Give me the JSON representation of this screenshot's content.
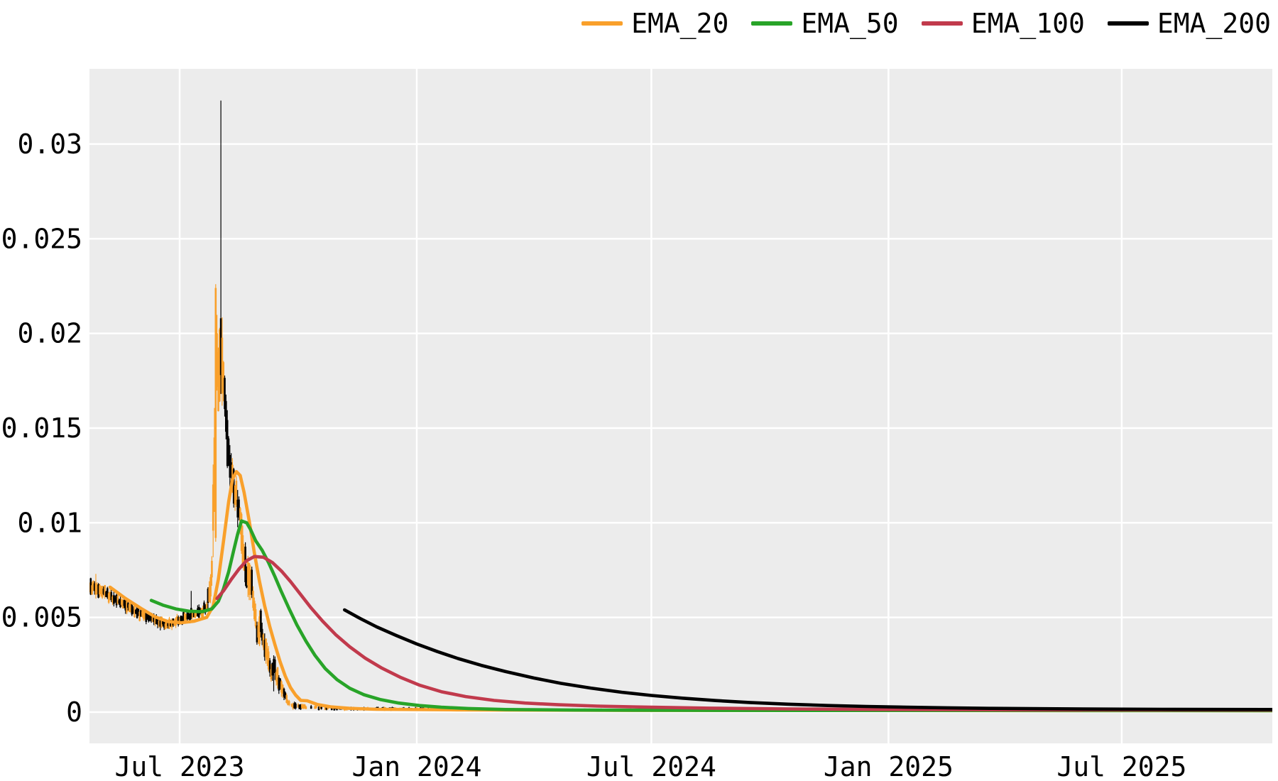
{
  "figure": {
    "bg": "#ffffff",
    "plot_bg": "#ececec",
    "grid_color": "#ffffff",
    "text_color": "#000000"
  },
  "legend": {
    "position": "top-right",
    "items": [
      {
        "label": "EMA_20",
        "color": "#F9A02B"
      },
      {
        "label": "EMA_50",
        "color": "#28A428"
      },
      {
        "label": "EMA_100",
        "color": "#C13A4C"
      },
      {
        "label": "EMA_200",
        "color": "#000000"
      }
    ]
  },
  "axes": {
    "y_ticks": [
      {
        "value": 0,
        "label": "0"
      },
      {
        "value": 0.005,
        "label": "0.005"
      },
      {
        "value": 0.01,
        "label": "0.01"
      },
      {
        "value": 0.015,
        "label": "0.015"
      },
      {
        "value": 0.02,
        "label": "0.02"
      },
      {
        "value": 0.025,
        "label": "0.025"
      },
      {
        "value": 0.03,
        "label": "0.03"
      }
    ],
    "x_ticks": [
      {
        "date": "2023-07-01",
        "label": "Jul 2023"
      },
      {
        "date": "2024-01-01",
        "label": "Jan 2024"
      },
      {
        "date": "2024-07-01",
        "label": "Jul 2024"
      },
      {
        "date": "2025-01-01",
        "label": "Jan 2025"
      },
      {
        "date": "2025-07-01",
        "label": "Jul 2025"
      }
    ]
  },
  "chart_data": {
    "type": "candlestick+line",
    "title": "",
    "xlabel": "",
    "ylabel": "",
    "grid": true,
    "legend_position": "upper right (above axes)",
    "x_range": [
      "2023-04-22",
      "2025-10-26"
    ],
    "ylim": [
      -0.00175,
      0.0339
    ],
    "candle_up_color": "#F9A02B",
    "candle_down_color": "#000000",
    "price_envelope_comment": "daily candle hi/lo envelope read from pixels: [date, low, high]",
    "price_envelope": [
      [
        "2023-04-22",
        0.0062,
        0.0071
      ],
      [
        "2023-04-28",
        0.006,
        0.0073
      ],
      [
        "2023-05-05",
        0.0058,
        0.0067
      ],
      [
        "2023-05-14",
        0.0054,
        0.0063
      ],
      [
        "2023-05-24",
        0.005,
        0.0059
      ],
      [
        "2023-06-03",
        0.0047,
        0.0055
      ],
      [
        "2023-06-12",
        0.0044,
        0.0052
      ],
      [
        "2023-06-20",
        0.0042,
        0.005
      ],
      [
        "2023-06-28",
        0.0044,
        0.0052
      ],
      [
        "2023-07-06",
        0.0046,
        0.0054
      ],
      [
        "2023-07-14",
        0.0048,
        0.0056
      ],
      [
        "2023-07-22",
        0.005,
        0.006
      ],
      [
        "2023-07-26",
        0.0055,
        0.009
      ],
      [
        "2023-07-27",
        0.007,
        0.0135
      ],
      [
        "2023-07-28",
        0.01,
        0.0185
      ],
      [
        "2023-07-29",
        0.009,
        0.0226
      ],
      [
        "2023-07-30",
        0.015,
        0.0215
      ],
      [
        "2023-08-01",
        0.016,
        0.0205
      ],
      [
        "2023-08-02",
        0.0165,
        0.0323
      ],
      [
        "2023-08-03",
        0.016,
        0.021
      ],
      [
        "2023-08-04",
        0.015,
        0.0195
      ],
      [
        "2023-08-06",
        0.0135,
        0.0172
      ],
      [
        "2023-08-08",
        0.012,
        0.0155
      ],
      [
        "2023-08-10",
        0.0108,
        0.014
      ],
      [
        "2023-08-12",
        0.0104,
        0.013
      ],
      [
        "2023-08-14",
        0.01,
        0.0126
      ],
      [
        "2023-08-16",
        0.0094,
        0.0118
      ],
      [
        "2023-08-18",
        0.0082,
        0.0108
      ],
      [
        "2023-08-20",
        0.007,
        0.0096
      ],
      [
        "2023-08-22",
        0.006,
        0.0084
      ],
      [
        "2023-08-24",
        0.0058,
        0.0082
      ],
      [
        "2023-08-26",
        0.0056,
        0.008
      ],
      [
        "2023-08-28",
        0.0042,
        0.0068
      ],
      [
        "2023-08-30",
        0.003,
        0.0055
      ],
      [
        "2023-09-01",
        0.0032,
        0.0058
      ],
      [
        "2023-09-03",
        0.003,
        0.0054
      ],
      [
        "2023-09-05",
        0.0022,
        0.0044
      ],
      [
        "2023-09-07",
        0.002,
        0.0038
      ],
      [
        "2023-09-09",
        0.0014,
        0.0032
      ],
      [
        "2023-09-11",
        0.0012,
        0.0028
      ],
      [
        "2023-09-13",
        0.0016,
        0.003
      ],
      [
        "2023-09-15",
        0.001,
        0.0024
      ],
      [
        "2023-09-17",
        0.0008,
        0.002
      ],
      [
        "2023-09-19",
        0.0006,
        0.0016
      ],
      [
        "2023-09-21",
        0.0004,
        0.0012
      ],
      [
        "2023-09-23",
        0.0002,
        0.0008
      ],
      [
        "2023-09-25",
        0.0001,
        0.0006
      ],
      [
        "2023-10-05",
        8e-05,
        0.00045
      ],
      [
        "2023-10-20",
        7e-05,
        0.00035
      ],
      [
        "2023-11-15",
        6e-05,
        0.0003
      ],
      [
        "2024-01-01",
        6e-05,
        0.00028
      ],
      [
        "2024-03-01",
        5e-05,
        0.00022
      ],
      [
        "2024-07-01",
        4e-05,
        0.00018
      ],
      [
        "2025-01-01",
        3e-05,
        0.00016
      ],
      [
        "2025-10-26",
        3e-05,
        0.00014
      ]
    ],
    "feature_candles_comment": "notable individual candles: [date, low, high, bodyLow, bodyHigh, color]",
    "feature_candles": [
      [
        "2023-04-27",
        0.006,
        0.0073,
        0.0062,
        0.0068,
        "up"
      ],
      [
        "2023-07-10",
        0.0049,
        0.0064,
        0.005,
        0.0055,
        "down"
      ],
      [
        "2023-07-29",
        0.009,
        0.0226,
        0.0092,
        0.0224,
        "up"
      ],
      [
        "2023-08-02",
        0.0168,
        0.0323,
        0.0178,
        0.0208,
        "down"
      ],
      [
        "2023-09-12",
        0.0011,
        0.003,
        0.0022,
        0.0028,
        "down"
      ]
    ],
    "series": [
      {
        "name": "EMA_20",
        "color": "#F9A02B",
        "points": [
          [
            "2023-05-08",
            0.0066
          ],
          [
            "2023-05-20",
            0.006
          ],
          [
            "2023-06-01",
            0.00548
          ],
          [
            "2023-06-12",
            0.00503
          ],
          [
            "2023-06-22",
            0.00478
          ],
          [
            "2023-07-02",
            0.00472
          ],
          [
            "2023-07-12",
            0.0048
          ],
          [
            "2023-07-22",
            0.005
          ],
          [
            "2023-07-27",
            0.0056
          ],
          [
            "2023-07-31",
            0.007
          ],
          [
            "2023-08-04",
            0.009
          ],
          [
            "2023-08-08",
            0.0111
          ],
          [
            "2023-08-11",
            0.0123
          ],
          [
            "2023-08-14",
            0.0127
          ],
          [
            "2023-08-17",
            0.0125
          ],
          [
            "2023-08-20",
            0.0116
          ],
          [
            "2023-08-24",
            0.0101
          ],
          [
            "2023-08-28",
            0.0084
          ],
          [
            "2023-09-01",
            0.0069
          ],
          [
            "2023-09-05",
            0.0056
          ],
          [
            "2023-09-09",
            0.0045
          ],
          [
            "2023-09-13",
            0.00355
          ],
          [
            "2023-09-17",
            0.00265
          ],
          [
            "2023-09-21",
            0.0019
          ],
          [
            "2023-09-25",
            0.0013
          ],
          [
            "2023-09-29",
            0.0009
          ],
          [
            "2023-10-03",
            0.00062
          ],
          [
            "2023-10-08",
            0.0006
          ],
          [
            "2023-10-16",
            0.0004
          ],
          [
            "2023-10-26",
            0.00028
          ],
          [
            "2023-11-10",
            0.0002
          ],
          [
            "2023-12-01",
            0.00015
          ],
          [
            "2024-02-01",
            0.00012
          ],
          [
            "2024-07-01",
            9e-05
          ],
          [
            "2025-10-26",
            8e-05
          ]
        ]
      },
      {
        "name": "EMA_50",
        "color": "#28A428",
        "points": [
          [
            "2023-06-09",
            0.0059
          ],
          [
            "2023-06-18",
            0.00565
          ],
          [
            "2023-06-28",
            0.00545
          ],
          [
            "2023-07-08",
            0.00533
          ],
          [
            "2023-07-18",
            0.0053
          ],
          [
            "2023-07-26",
            0.00545
          ],
          [
            "2023-07-31",
            0.00585
          ],
          [
            "2023-08-04",
            0.0065
          ],
          [
            "2023-08-08",
            0.0074
          ],
          [
            "2023-08-12",
            0.00855
          ],
          [
            "2023-08-15",
            0.0094
          ],
          [
            "2023-08-18",
            0.0101
          ],
          [
            "2023-08-22",
            0.01
          ],
          [
            "2023-08-25",
            0.00965
          ],
          [
            "2023-08-29",
            0.00905
          ],
          [
            "2023-09-03",
            0.00855
          ],
          [
            "2023-09-08",
            0.0079
          ],
          [
            "2023-09-13",
            0.00715
          ],
          [
            "2023-09-18",
            0.00635
          ],
          [
            "2023-09-24",
            0.00545
          ],
          [
            "2023-09-30",
            0.0046
          ],
          [
            "2023-10-07",
            0.00375
          ],
          [
            "2023-10-14",
            0.003
          ],
          [
            "2023-10-22",
            0.0023
          ],
          [
            "2023-10-31",
            0.00172
          ],
          [
            "2023-11-10",
            0.00126
          ],
          [
            "2023-11-21",
            0.00092
          ],
          [
            "2023-12-04",
            0.00066
          ],
          [
            "2023-12-18",
            0.00048
          ],
          [
            "2024-01-03",
            0.00035
          ],
          [
            "2024-01-20",
            0.00026
          ],
          [
            "2024-02-10",
            0.00019
          ],
          [
            "2024-03-10",
            0.00014
          ],
          [
            "2024-05-01",
            0.00011
          ],
          [
            "2024-09-01",
            9e-05
          ],
          [
            "2025-10-26",
            8e-05
          ]
        ]
      },
      {
        "name": "EMA_100",
        "color": "#C13A4C",
        "points": [
          [
            "2023-07-30",
            0.006
          ],
          [
            "2023-08-04",
            0.0064
          ],
          [
            "2023-08-10",
            0.007
          ],
          [
            "2023-08-16",
            0.00755
          ],
          [
            "2023-08-22",
            0.008
          ],
          [
            "2023-08-28",
            0.00822
          ],
          [
            "2023-09-04",
            0.00818
          ],
          [
            "2023-09-11",
            0.0079
          ],
          [
            "2023-09-18",
            0.00745
          ],
          [
            "2023-09-25",
            0.0069
          ],
          [
            "2023-10-03",
            0.0062
          ],
          [
            "2023-10-11",
            0.0055
          ],
          [
            "2023-10-20",
            0.0048
          ],
          [
            "2023-10-30",
            0.0041
          ],
          [
            "2023-11-10",
            0.00345
          ],
          [
            "2023-11-22",
            0.00285
          ],
          [
            "2023-12-05",
            0.00232
          ],
          [
            "2023-12-19",
            0.00185
          ],
          [
            "2024-01-03",
            0.00143
          ],
          [
            "2024-01-20",
            0.00108
          ],
          [
            "2024-02-08",
            0.00082
          ],
          [
            "2024-03-01",
            0.00062
          ],
          [
            "2024-03-25",
            0.00048
          ],
          [
            "2024-04-20",
            0.00039
          ],
          [
            "2024-05-20",
            0.00032
          ],
          [
            "2024-07-01",
            0.00026
          ],
          [
            "2024-08-15",
            0.00021
          ],
          [
            "2024-10-15",
            0.00017
          ],
          [
            "2025-01-01",
            0.00014
          ],
          [
            "2025-04-01",
            0.00012
          ],
          [
            "2025-10-26",
            0.00011
          ]
        ]
      },
      {
        "name": "EMA_200",
        "color": "#000000",
        "points": [
          [
            "2023-11-06",
            0.0054
          ],
          [
            "2023-11-18",
            0.00495
          ],
          [
            "2023-12-01",
            0.0045
          ],
          [
            "2023-12-16",
            0.00405
          ],
          [
            "2024-01-01",
            0.0036
          ],
          [
            "2024-01-17",
            0.0032
          ],
          [
            "2024-02-02",
            0.00283
          ],
          [
            "2024-02-20",
            0.00247
          ],
          [
            "2024-03-10",
            0.00214
          ],
          [
            "2024-04-01",
            0.0018
          ],
          [
            "2024-04-22",
            0.00152
          ],
          [
            "2024-05-15",
            0.00127
          ],
          [
            "2024-06-08",
            0.00105
          ],
          [
            "2024-07-01",
            0.00088
          ],
          [
            "2024-07-25",
            0.00074
          ],
          [
            "2024-08-20",
            0.00061
          ],
          [
            "2024-09-15",
            0.00051
          ],
          [
            "2024-10-15",
            0.00042
          ],
          [
            "2024-11-15",
            0.00035
          ],
          [
            "2024-12-15",
            0.0003
          ],
          [
            "2025-01-15",
            0.00026
          ],
          [
            "2025-02-15",
            0.00023
          ],
          [
            "2025-03-20",
            0.0002
          ],
          [
            "2025-05-01",
            0.00018
          ],
          [
            "2025-06-15",
            0.00016
          ],
          [
            "2025-08-01",
            0.00015
          ],
          [
            "2025-10-26",
            0.00014
          ]
        ]
      }
    ]
  }
}
